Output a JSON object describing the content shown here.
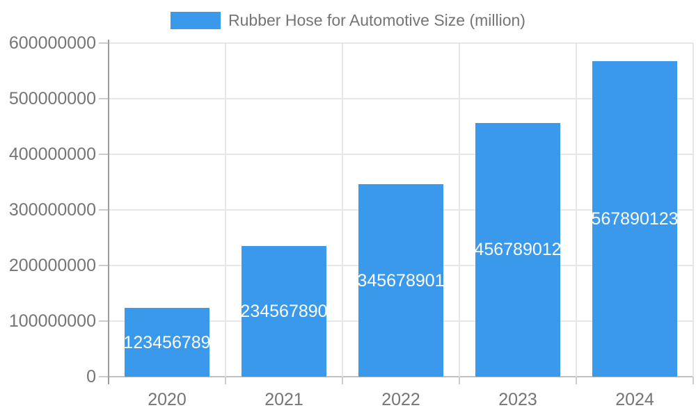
{
  "chart_data": {
    "type": "bar",
    "title": "",
    "legend_position": "top",
    "categories": [
      "2020",
      "2021",
      "2022",
      "2023",
      "2024"
    ],
    "series": [
      {
        "name": "Rubber Hose for Automotive Size (million)",
        "color": "#3B99EC",
        "values": [
          123456789,
          234567890,
          345678901,
          456789012,
          567890123
        ]
      }
    ],
    "data_labels_visible": true,
    "xlabel": "",
    "ylabel": "",
    "ylim": [
      0,
      600000000
    ],
    "yticks": [
      0,
      100000000,
      200000000,
      300000000,
      400000000,
      500000000,
      600000000
    ],
    "grid": true,
    "colors": {
      "background": "#FFFFFF",
      "bar": "#3B99EC",
      "axis_text": "#757575",
      "gridline": "#E6E6E6",
      "zero_line": "#C2C2C2",
      "tick": "#CCCCCC",
      "axis_line": "#9E9E9E",
      "data_label_text": "#FFFFFF"
    }
  }
}
